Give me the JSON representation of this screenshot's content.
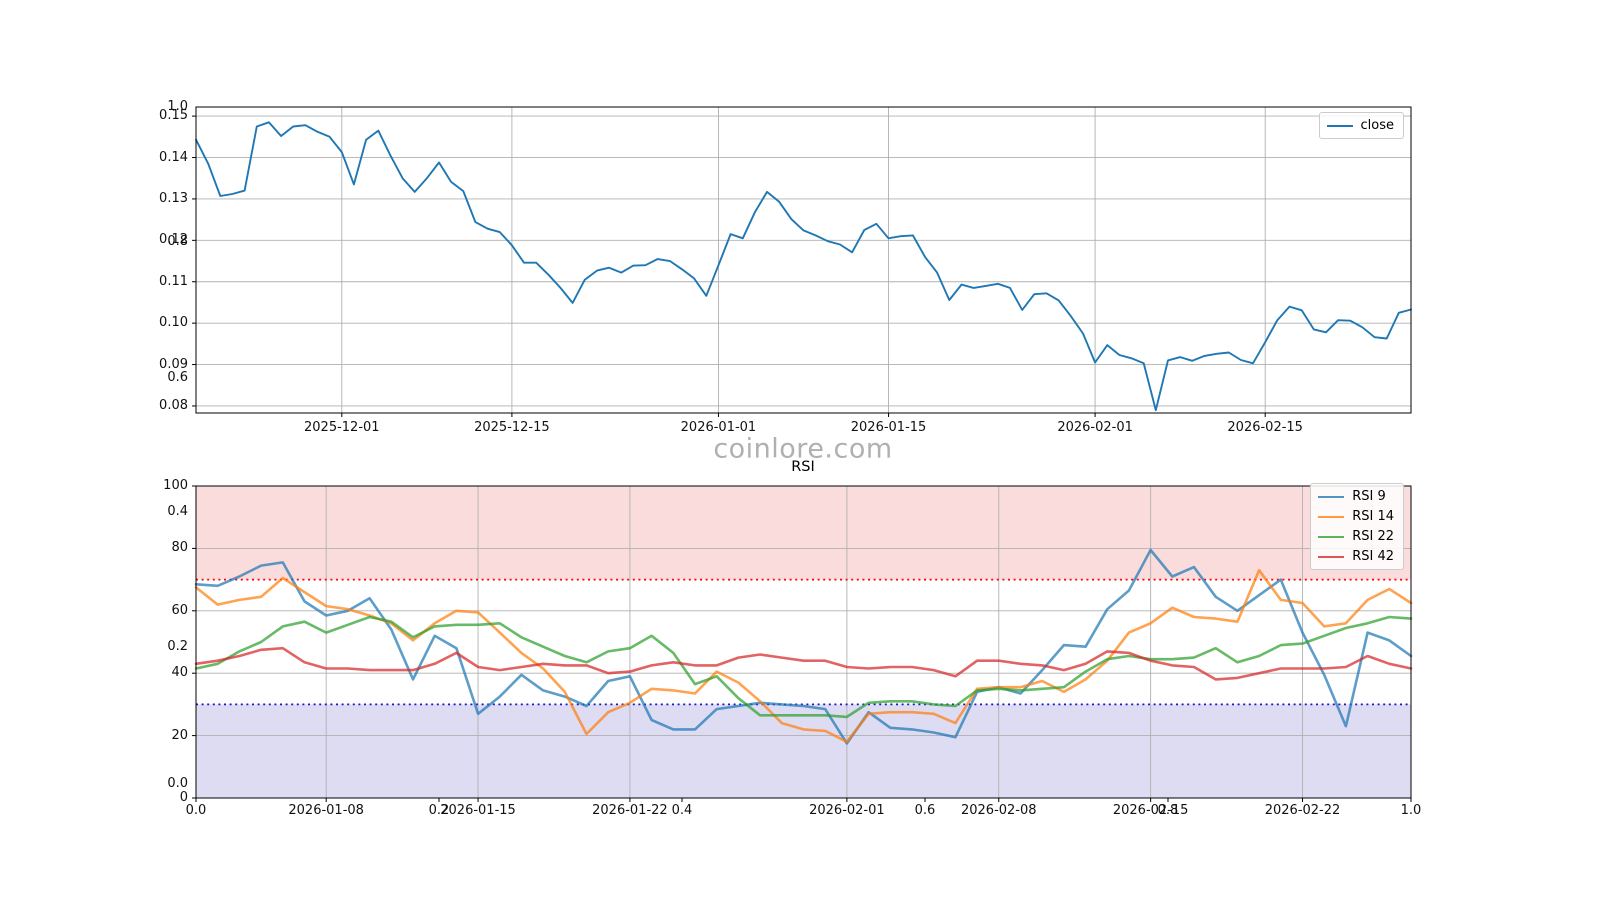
{
  "watermark": "coinlore.com",
  "colors": {
    "close": "#1f77b4",
    "rsi9": "#1f77b4",
    "rsi14": "#ff7f0e",
    "rsi22": "#2ca02c",
    "rsi42": "#d62728",
    "overbought_line": "#ff0000",
    "oversold_line": "#1515cd",
    "overbought_band": "#fbdcdc",
    "oversold_band": "#dedcf3",
    "grid": "#b0b0b0",
    "spine": "#000000"
  },
  "chart_data": [
    {
      "type": "line",
      "name": "price-panel",
      "title": "",
      "x_start": "2025-11-19",
      "x_freq": "daily",
      "x_tick_labels": [
        "2025-12-01",
        "2025-12-15",
        "2026-01-01",
        "2026-01-15",
        "2026-02-01",
        "2026-02-15"
      ],
      "x_tick_indices": [
        12,
        26,
        43,
        57,
        74,
        88
      ],
      "y_tick_labels": [
        "0.15",
        "0.14",
        "0.13",
        "0.12",
        "0.11",
        "0.10",
        "0.09",
        "0.08"
      ],
      "y_ticks": [
        0.15,
        0.14,
        0.13,
        0.12,
        0.11,
        0.1,
        0.09,
        0.08
      ],
      "ylim": [
        0.0783,
        0.1522
      ],
      "grid": true,
      "legend_position": "upper right",
      "series": [
        {
          "name": "close",
          "color": "#1f77b4",
          "values": [
            0.1443,
            0.1385,
            0.1307,
            0.1312,
            0.132,
            0.1475,
            0.1485,
            0.1452,
            0.1475,
            0.1478,
            0.1462,
            0.145,
            0.1413,
            0.1335,
            0.1443,
            0.1465,
            0.1405,
            0.135,
            0.1317,
            0.135,
            0.1388,
            0.1341,
            0.1319,
            0.1244,
            0.1228,
            0.122,
            0.1188,
            0.1146,
            0.1146,
            0.1117,
            0.1085,
            0.1049,
            0.1105,
            0.1127,
            0.1134,
            0.1122,
            0.1139,
            0.114,
            0.1155,
            0.115,
            0.113,
            0.1108,
            0.1066,
            0.114,
            0.1215,
            0.1205,
            0.1268,
            0.1317,
            0.1293,
            0.1251,
            0.1224,
            0.1212,
            0.1198,
            0.119,
            0.1171,
            0.1225,
            0.124,
            0.1205,
            0.121,
            0.1212,
            0.116,
            0.1122,
            0.1056,
            0.1093,
            0.1085,
            0.109,
            0.1095,
            0.1085,
            0.1032,
            0.107,
            0.1072,
            0.1055,
            0.1017,
            0.0975,
            0.0905,
            0.0947,
            0.0923,
            0.0915,
            0.0903,
            0.079,
            0.091,
            0.0918,
            0.0909,
            0.0921,
            0.0926,
            0.0929,
            0.0911,
            0.0903,
            0.0954,
            0.1007,
            0.104,
            0.1031,
            0.0985,
            0.0978,
            0.1007,
            0.1006,
            0.099,
            0.0966,
            0.0963,
            0.1025,
            0.1033
          ]
        }
      ]
    },
    {
      "type": "line",
      "name": "rsi-panel",
      "title": "RSI",
      "x_start": "2026-01-02",
      "x_freq": "daily",
      "x_tick_labels": [
        "2026-01-08",
        "2026-01-15",
        "2026-01-22",
        "2026-02-01",
        "2026-02-08",
        "2026-02-15",
        "2026-02-22"
      ],
      "x_tick_indices": [
        6,
        13,
        20,
        30,
        37,
        44,
        51
      ],
      "y_tick_labels": [
        "100",
        "80",
        "60",
        "40",
        "20",
        "0"
      ],
      "y_ticks": [
        100,
        80,
        60,
        40,
        20,
        0
      ],
      "ylim": [
        0,
        100
      ],
      "grid": true,
      "overbought_level": 70,
      "oversold_level": 30,
      "legend_position": "upper right",
      "series": [
        {
          "name": "RSI 9",
          "color": "#1f77b4",
          "values": [
            68.5,
            68,
            71,
            74.5,
            75.5,
            63,
            58.5,
            60,
            64,
            54,
            38,
            52,
            48,
            27,
            32.5,
            39.5,
            34.5,
            32.5,
            29.5,
            37.5,
            39,
            25,
            22,
            22,
            28.5,
            29.5,
            30.5,
            30,
            29.5,
            28.5,
            17.5,
            27.5,
            22.5,
            22,
            21,
            19.5,
            34,
            35.5,
            33.5,
            41,
            49,
            48.5,
            60.5,
            66.5,
            79.5,
            71,
            74,
            64.5,
            60,
            65,
            70,
            53,
            39.5,
            23,
            53,
            50.5,
            45.5
          ]
        },
        {
          "name": "RSI 14",
          "color": "#ff7f0e",
          "values": [
            67.5,
            62,
            63.5,
            64.5,
            70.5,
            66,
            61.5,
            60.5,
            58.5,
            56,
            50.5,
            56,
            60,
            59.5,
            53,
            46.5,
            41.5,
            34,
            20.5,
            27.5,
            30.5,
            35,
            34.5,
            33.5,
            40.5,
            37,
            31,
            24,
            22,
            21.5,
            18,
            27,
            27.5,
            27.5,
            27,
            24,
            35,
            35.5,
            35.5,
            37.5,
            34,
            38,
            44,
            53,
            56,
            61,
            58,
            57.5,
            56.5,
            73,
            63.5,
            62.5,
            55,
            56,
            63.5,
            67,
            62.5
          ]
        },
        {
          "name": "RSI 22",
          "color": "#2ca02c",
          "values": [
            41.5,
            43,
            47,
            50,
            55,
            56.5,
            53,
            55.5,
            58,
            56.5,
            51.5,
            55,
            55.5,
            55.5,
            56,
            51.5,
            48.5,
            45.5,
            43.5,
            47,
            48,
            52,
            46.5,
            36.5,
            39,
            32,
            26.5,
            26.5,
            26.5,
            26.5,
            26,
            30.5,
            31,
            31,
            30,
            29.5,
            34.5,
            35,
            34.5,
            35,
            35.5,
            40.5,
            44.5,
            45.5,
            44.5,
            44.5,
            45,
            48,
            43.5,
            45.5,
            49,
            49.5,
            52,
            54.5,
            56,
            58,
            57.5
          ]
        },
        {
          "name": "RSI 42",
          "color": "#d62728",
          "values": [
            43,
            44,
            45.5,
            47.5,
            48,
            43.5,
            41.5,
            41.5,
            41,
            41,
            41,
            43,
            46.5,
            42,
            41,
            42,
            43,
            42.5,
            42.5,
            40,
            40.5,
            42.5,
            43.5,
            42.5,
            42.5,
            45,
            46,
            45,
            44,
            44,
            42,
            41.5,
            42,
            42,
            41,
            39,
            44,
            44,
            43,
            42.5,
            41,
            43,
            47,
            46.5,
            44,
            42.5,
            42,
            38,
            38.5,
            40,
            41.5,
            41.5,
            41.5,
            42,
            45.5,
            43,
            41.5
          ]
        }
      ]
    }
  ],
  "overlay_axis": {
    "x_tick_labels": [
      "0.0",
      "0.2",
      "0.4",
      "0.6",
      "0.8",
      "1.0"
    ],
    "y_tick_labels": [
      "1.0",
      "0.8",
      "0.6",
      "0.4",
      "0.2",
      "0.0"
    ]
  }
}
